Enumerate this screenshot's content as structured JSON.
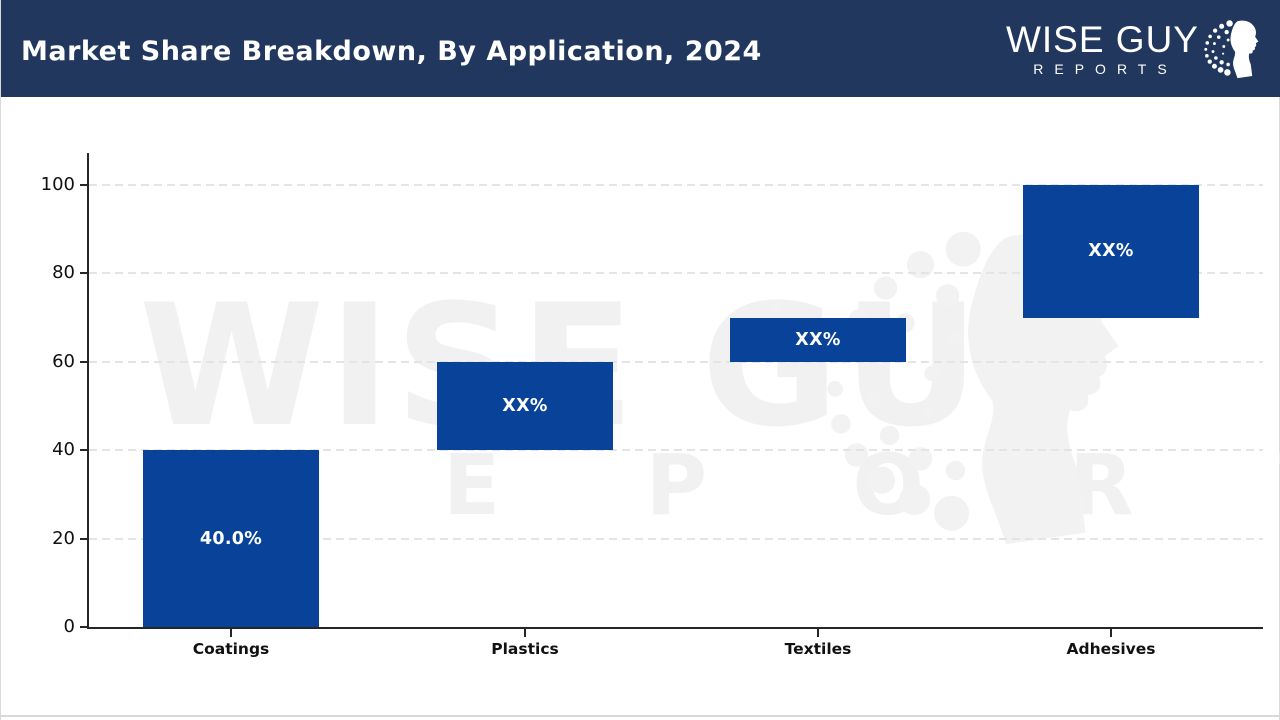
{
  "header": {
    "title": "Market Share Breakdown, By Application, 2024",
    "bg_color": "#21375e",
    "logo": {
      "line1": "WISE GUY",
      "line2": "REPORTS"
    }
  },
  "watermark": {
    "line1": "WISE GUY",
    "line2": "R E P O R T S"
  },
  "chart_data": {
    "type": "bar",
    "subtype": "waterfall",
    "title": "Market Share Breakdown, By Application, 2024",
    "xlabel": "",
    "ylabel": "",
    "categories": [
      "Coatings",
      "Plastics",
      "Textiles",
      "Adhesives"
    ],
    "segments": [
      {
        "category": "Coatings",
        "start": 0,
        "end": 40,
        "label": "40.0%"
      },
      {
        "category": "Plastics",
        "start": 40,
        "end": 60,
        "label": "XX%"
      },
      {
        "category": "Textiles",
        "start": 60,
        "end": 70,
        "label": "XX%"
      },
      {
        "category": "Adhesives",
        "start": 70,
        "end": 100,
        "label": "XX%"
      }
    ],
    "yticks": [
      0,
      20,
      40,
      60,
      80,
      100
    ],
    "ylim": [
      0,
      105
    ],
    "grid": true,
    "grid_style": "dashed",
    "legend": null,
    "bar_color": "#084299",
    "bar_label_color": "#ffffff"
  }
}
